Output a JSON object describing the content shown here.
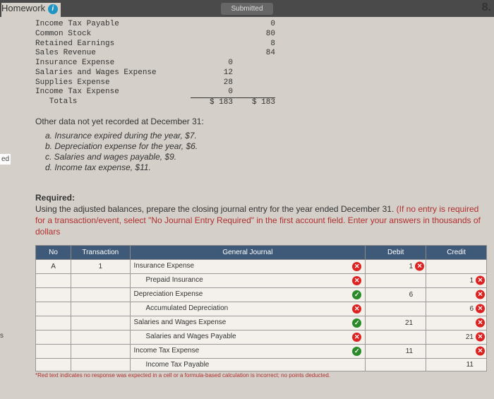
{
  "top": {
    "homework": "Homework",
    "submitted": "Submitted",
    "score_partial": "8."
  },
  "trial_balance": {
    "rows": [
      {
        "label": "Income Tax Payable",
        "dr": "",
        "cr": "0"
      },
      {
        "label": "Common Stock",
        "dr": "",
        "cr": "80"
      },
      {
        "label": "Retained Earnings",
        "dr": "",
        "cr": "8"
      },
      {
        "label": "Sales Revenue",
        "dr": "",
        "cr": "84"
      },
      {
        "label": "Insurance Expense",
        "dr": "0",
        "cr": ""
      },
      {
        "label": "Salaries and Wages Expense",
        "dr": "12",
        "cr": ""
      },
      {
        "label": "Supplies Expense",
        "dr": "28",
        "cr": ""
      },
      {
        "label": "Income Tax Expense",
        "dr": "0",
        "cr": ""
      }
    ],
    "totals": {
      "label": "   Totals",
      "dr": "$ 183",
      "cr": "$ 183"
    }
  },
  "other": {
    "heading": "Other data not yet recorded at December 31:",
    "items": [
      "a. Insurance expired during the year, $7.",
      "b. Depreciation expense for the year, $6.",
      "c. Salaries and wages payable, $9.",
      "d. Income tax expense, $11."
    ]
  },
  "required": {
    "hd": "Required:",
    "line1": "Using the adjusted balances, prepare the closing journal entry for the year ended December 31. ",
    "line2_red": "(If no entry is required for a transaction/event, select \"No Journal Entry Required\" in the first account field. Enter your answers in thousands of dollars"
  },
  "gj": {
    "headers": {
      "no": "No",
      "txn": "Transaction",
      "journal": "General Journal",
      "debit": "Debit",
      "credit": "Credit"
    },
    "first": {
      "no": "A",
      "txn": "1"
    },
    "rows": [
      {
        "account": "Insurance Expense",
        "indent": false,
        "jmark": "x",
        "debit": "1",
        "dmark": "x",
        "credit": "",
        "cmark": ""
      },
      {
        "account": "Prepaid Insurance",
        "indent": true,
        "jmark": "x",
        "debit": "",
        "dmark": "",
        "credit": "1",
        "cmark": "x"
      },
      {
        "account": "Depreciation Expense",
        "indent": false,
        "jmark": "v",
        "debit": "6",
        "dmark": "",
        "credit": "",
        "cmark": "x"
      },
      {
        "account": "Accumulated Depreciation",
        "indent": true,
        "jmark": "x",
        "debit": "",
        "dmark": "",
        "credit": "6",
        "cmark": "x"
      },
      {
        "account": "Salaries and Wages Expense",
        "indent": false,
        "jmark": "v",
        "debit": "21",
        "dmark": "",
        "credit": "",
        "cmark": "x"
      },
      {
        "account": "Salaries and Wages Payable",
        "indent": true,
        "jmark": "x",
        "debit": "",
        "dmark": "",
        "credit": "21",
        "cmark": "x"
      },
      {
        "account": "Income Tax Expense",
        "indent": false,
        "jmark": "v",
        "debit": "11",
        "dmark": "",
        "credit": "",
        "cmark": "x"
      },
      {
        "account": "Income Tax Payable",
        "indent": true,
        "jmark": "",
        "debit": "",
        "dmark": "",
        "credit": "11",
        "cmark": ""
      }
    ],
    "footnote": "*Red text indicates no response was expected in a cell or a formula-based calculation is incorrect; no points deducted."
  },
  "side": {
    "ed": "ed",
    "s": "s"
  }
}
